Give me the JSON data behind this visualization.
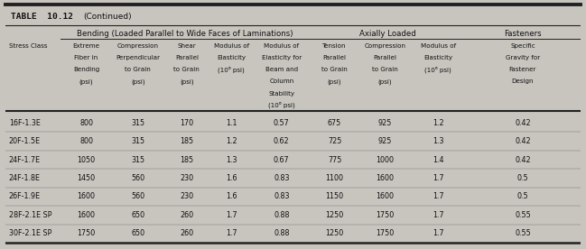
{
  "title": "TABLE  10.12",
  "subtitle": "(Continued)",
  "section_bending": "Bending (Loaded Parallel to Wide Faces of Laminations)",
  "section_axially": "Axially Loaded",
  "section_fasteners": "Fasteners",
  "col_headers_line1": [
    "Stress Class",
    "Extreme",
    "Compression",
    "Shear",
    "Modulus of",
    "Modulus of",
    "Tension",
    "Compression",
    "Modulus of",
    "Specific"
  ],
  "col_headers_line2": [
    "",
    "Fiber in",
    "Perpendicular",
    "Parallel",
    "Elasticity",
    "Elasticity for",
    "Parallel",
    "Parallel",
    "Elasticity",
    "Gravity for"
  ],
  "col_headers_line3": [
    "",
    "Bending",
    "to Grain",
    "to Grain",
    "(10⁶ psi)",
    "Beam and",
    "to Grain",
    "to Grain",
    "(10⁶ psi)",
    "Fastener"
  ],
  "col_headers_line4": [
    "",
    "(psi)",
    "(psi)",
    "(psi)",
    "",
    "Column",
    "(psi)",
    "(psi)",
    "",
    "Design"
  ],
  "col_headers_line5": [
    "",
    "",
    "",
    "",
    "",
    "Stability",
    "",
    "",
    "",
    ""
  ],
  "col_headers_line6": [
    "",
    "",
    "",
    "",
    "",
    "(10⁶ psi)",
    "",
    "",
    "",
    ""
  ],
  "rows": [
    [
      "16F-1.3E",
      "800",
      "315",
      "170",
      "1.1",
      "0.57",
      "675",
      "925",
      "1.2",
      "0.42"
    ],
    [
      "20F-1.5E",
      "800",
      "315",
      "185",
      "1.2",
      "0.62",
      "725",
      "925",
      "1.3",
      "0.42"
    ],
    [
      "24F-1.7E",
      "1050",
      "315",
      "185",
      "1.3",
      "0.67",
      "775",
      "1000",
      "1.4",
      "0.42"
    ],
    [
      "24F-1.8E",
      "1450",
      "560",
      "230",
      "1.6",
      "0.83",
      "1100",
      "1600",
      "1.7",
      "0.5"
    ],
    [
      "26F-1.9E",
      "1600",
      "560",
      "230",
      "1.6",
      "0.83",
      "1150",
      "1600",
      "1.7",
      "0.5"
    ],
    [
      "28F-2.1E SP",
      "1600",
      "650",
      "260",
      "1.7",
      "0.88",
      "1250",
      "1750",
      "1.7",
      "0.55"
    ],
    [
      "30F-2.1E SP",
      "1750",
      "650",
      "260",
      "1.7",
      "0.88",
      "1250",
      "1750",
      "1.7",
      "0.55"
    ]
  ],
  "bg_color": "#c8c5bf",
  "line_color": "#222222",
  "text_color": "#111111"
}
